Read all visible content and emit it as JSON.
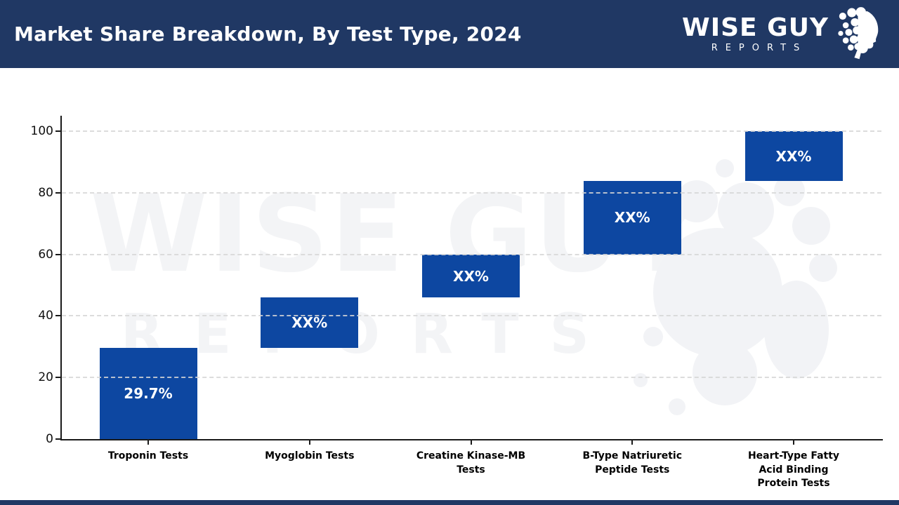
{
  "header": {
    "title": "Market Share Breakdown, By Test Type, 2024",
    "background_color": "#203864",
    "logo": {
      "line1": "WISE GUY",
      "line2": "REPORTS"
    }
  },
  "watermark": {
    "line1": "WISE GUY",
    "line2": "REPORTS"
  },
  "footer": {
    "background_color": "#203864"
  },
  "chart_data": {
    "type": "bar",
    "subtype": "waterfall",
    "title": "Market Share Breakdown, By Test Type, 2024",
    "xlabel": "",
    "ylabel": "",
    "ylim": [
      0,
      105
    ],
    "grid": "horizontal dashed",
    "legend": "none",
    "bar_color": "#0d47a1",
    "value_label_color": "#ffffff",
    "yticks": [
      0,
      20,
      40,
      60,
      80,
      100
    ],
    "categories": [
      "Troponin Tests",
      "Myoglobin Tests",
      "Creatine Kinase-MB\nTests",
      "B-Type Natriuretic\nPeptide Tests",
      "Heart-Type Fatty\nAcid Binding\nProtein Tests"
    ],
    "segments": [
      {
        "label": "29.7%",
        "start": 0,
        "end": 29.7,
        "value": 29.7
      },
      {
        "label": "XX%",
        "start": 29.7,
        "end": 45.9,
        "value": 16.2
      },
      {
        "label": "XX%",
        "start": 45.9,
        "end": 60.0,
        "value": 14.1
      },
      {
        "label": "XX%",
        "start": 60.0,
        "end": 83.8,
        "value": 23.8
      },
      {
        "label": "XX%",
        "start": 83.8,
        "end": 100,
        "value": 16.2
      }
    ]
  }
}
